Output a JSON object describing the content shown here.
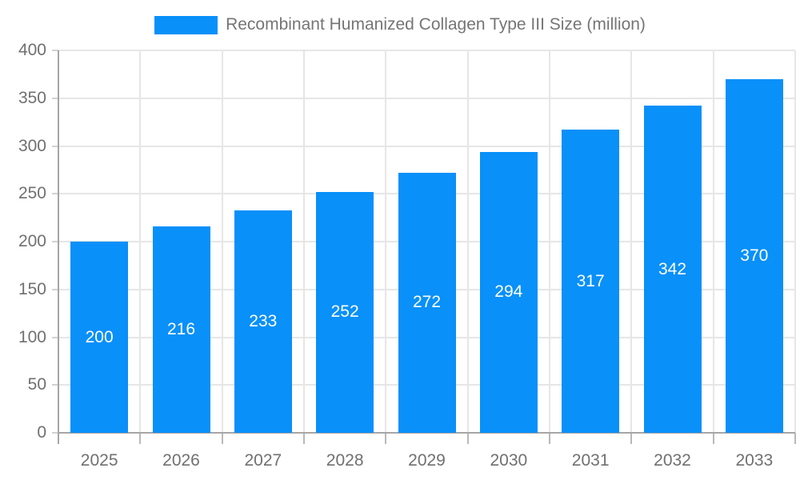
{
  "legend": {
    "label": "Recombinant Humanized Collagen Type III Size (million)"
  },
  "chart_data": {
    "type": "bar",
    "title": "Recombinant Humanized Collagen Type III Size (million)",
    "series": [
      {
        "name": "Recombinant Humanized Collagen Type III Size (million)",
        "values": [
          200,
          216,
          233,
          252,
          272,
          294,
          317,
          342,
          370
        ]
      }
    ],
    "categories": [
      "2025",
      "2026",
      "2027",
      "2028",
      "2029",
      "2030",
      "2031",
      "2032",
      "2033"
    ],
    "data_labels": [
      "200",
      "216",
      "233",
      "252",
      "272",
      "294",
      "317",
      "342",
      "370"
    ],
    "xlabel": "",
    "ylabel": "",
    "ylim": [
      0,
      400
    ],
    "ytick_step": 50,
    "yticks": [
      0,
      50,
      100,
      150,
      200,
      250,
      300,
      350,
      400
    ],
    "grid": true,
    "legend_position": "top",
    "colors": {
      "bar": "#0990f9",
      "bar_value_text": "#ffffff",
      "axis_text": "#707070",
      "legend_text": "#757575",
      "gridline": "#e6e6e6",
      "axis_line": "#a6a6a6",
      "background": "#ffffff"
    }
  }
}
